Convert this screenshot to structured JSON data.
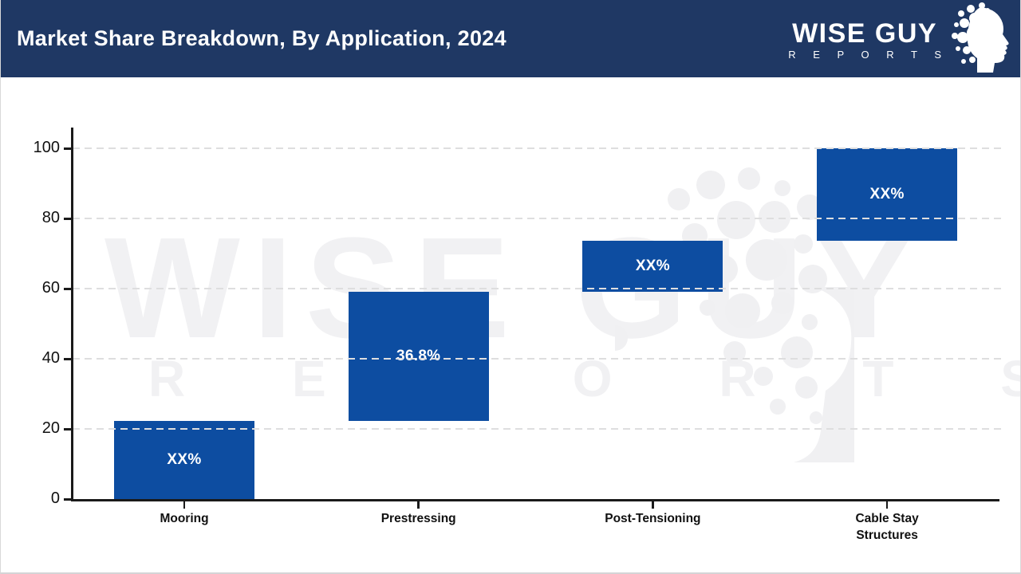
{
  "header": {
    "title": "Market Share Breakdown, By Application, 2024",
    "bg_color": "#1f3864",
    "logo": {
      "line1": "WISE GUY",
      "line2": "R E P O R T S"
    }
  },
  "watermark": {
    "line1": "WISE GUY",
    "line2": "R E P O R T S"
  },
  "chart_data": {
    "type": "bar",
    "subtype": "waterfall",
    "title": "Market Share Breakdown, By Application, 2024",
    "xlabel": "",
    "ylabel": "",
    "categories": [
      "Mooring",
      "Prestressing",
      "Post-Tensioning",
      "Cable Stay Structures"
    ],
    "category_display": [
      "Mooring",
      "Prestressing",
      "Post-Tensioning",
      "Cable Stay\nStructures"
    ],
    "segments": [
      {
        "category": "Mooring",
        "start": 0,
        "end": 22.2,
        "label": "XX%"
      },
      {
        "category": "Prestressing",
        "start": 22.2,
        "end": 59.0,
        "label": "36.8%"
      },
      {
        "category": "Post-Tensioning",
        "start": 59.0,
        "end": 73.7,
        "label": "XX%"
      },
      {
        "category": "Cable Stay Structures",
        "start": 73.7,
        "end": 100,
        "label": "XX%"
      }
    ],
    "bar_labels": [
      "XX%",
      "36.8%",
      "XX%",
      "XX%"
    ],
    "yticks": [
      0,
      20,
      40,
      60,
      80,
      100
    ],
    "ylim": [
      0,
      106
    ],
    "bar_color": "#0d4da1",
    "grid": "horizontal-dashed-over-bars",
    "legend": "none"
  }
}
